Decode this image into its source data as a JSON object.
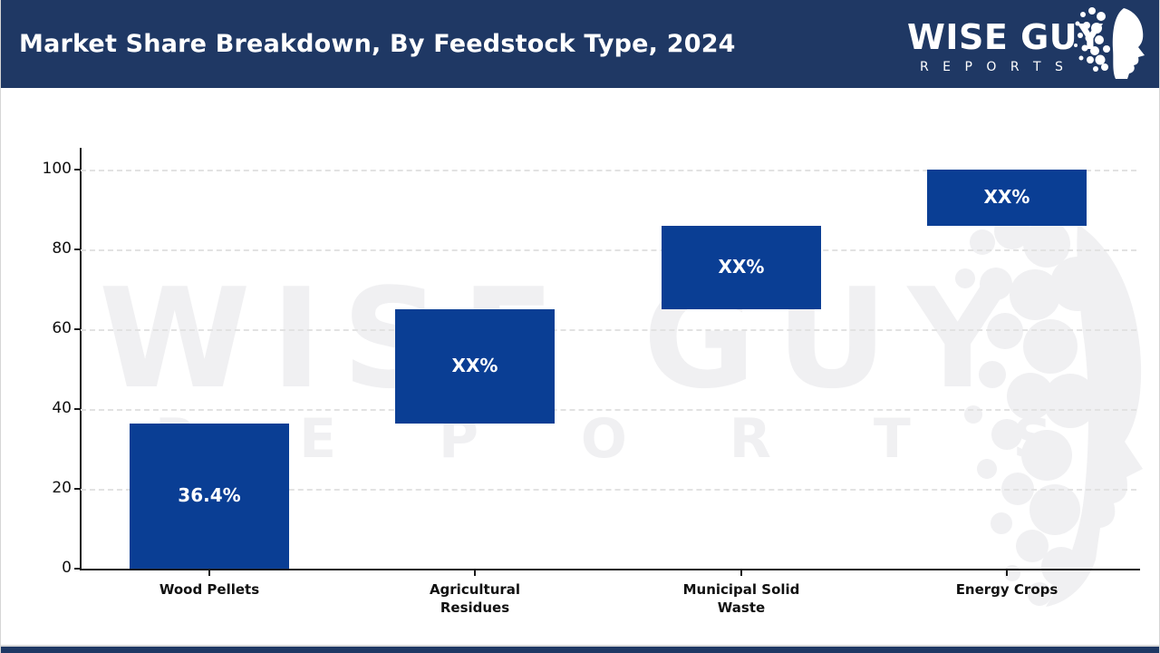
{
  "header": {
    "title": "Market Share Breakdown, By Feedstock Type, 2024",
    "logo_line1": "WISE GUY",
    "logo_line2": "R E P O R T S"
  },
  "watermark": {
    "line1": "WISE GUY",
    "line2": "R E P O R T S"
  },
  "colors": {
    "header_bg": "#1f3864",
    "footer_bg": "#1f3864",
    "bar": "#0a3e94",
    "bar_label": "#ffffff",
    "grid": "#e2e2e2",
    "axis": "#1a1a1a",
    "watermark": "#f0f0f2"
  },
  "chart_data": {
    "type": "bar",
    "variant": "waterfall",
    "title": "Market Share Breakdown, By Feedstock Type, 2024",
    "categories": [
      "Wood Pellets",
      "Agricultural Residues",
      "Municipal Solid Waste",
      "Energy Crops"
    ],
    "categories_wrapped": [
      [
        "Wood Pellets"
      ],
      [
        "Agricultural",
        "Residues"
      ],
      [
        "Municipal Solid",
        "Waste"
      ],
      [
        "Energy Crops"
      ]
    ],
    "segments": [
      {
        "category": "Wood Pellets",
        "start": 0,
        "end": 36.4,
        "label": "36.4%"
      },
      {
        "category": "Agricultural Residues",
        "start": 36.4,
        "end": 65.0,
        "label": "XX%"
      },
      {
        "category": "Municipal Solid Waste",
        "start": 65.0,
        "end": 85.8,
        "label": "XX%"
      },
      {
        "category": "Energy Crops",
        "start": 85.8,
        "end": 100.0,
        "label": "XX%"
      }
    ],
    "bar_labels": [
      "36.4%",
      "XX%",
      "XX%",
      "XX%"
    ],
    "yticks": [
      0,
      20,
      40,
      60,
      80,
      100
    ],
    "ylim": [
      0,
      105
    ],
    "xlabel": "",
    "ylabel": "",
    "grid": {
      "horizontal": true,
      "style": "dashed"
    },
    "legend": null
  }
}
